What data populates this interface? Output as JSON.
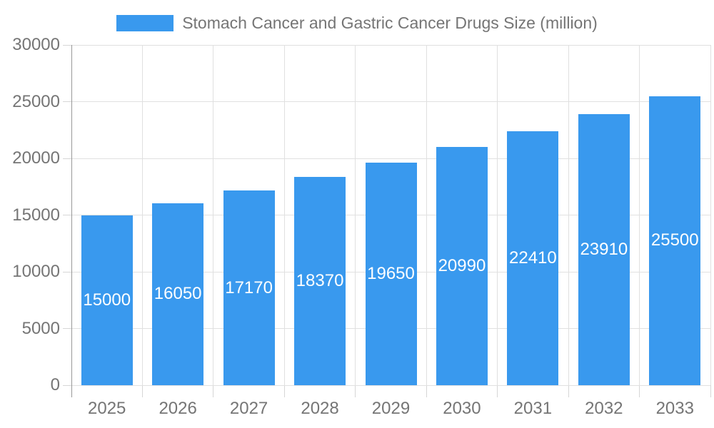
{
  "chart_data": {
    "type": "bar",
    "title": "Stomach Cancer and Gastric Cancer Drugs Size (million)",
    "categories": [
      "2025",
      "2026",
      "2027",
      "2028",
      "2029",
      "2030",
      "2031",
      "2032",
      "2033"
    ],
    "values": [
      15000,
      16050,
      17170,
      18370,
      19650,
      20990,
      22410,
      23910,
      25500
    ],
    "xlabel": "",
    "ylabel": "",
    "ylim": [
      0,
      30000
    ],
    "ytick_step": 5000,
    "grid": true,
    "legend_position": "top-center",
    "value_label_position": "inside-center",
    "colors": {
      "bar": "#3999EE",
      "value_label": "#ffffff",
      "axis_label": "#757575",
      "gridline": "#e0e0e0",
      "axis_line": "#999999",
      "tick": "#d6d6d6",
      "background": "#ffffff"
    }
  }
}
